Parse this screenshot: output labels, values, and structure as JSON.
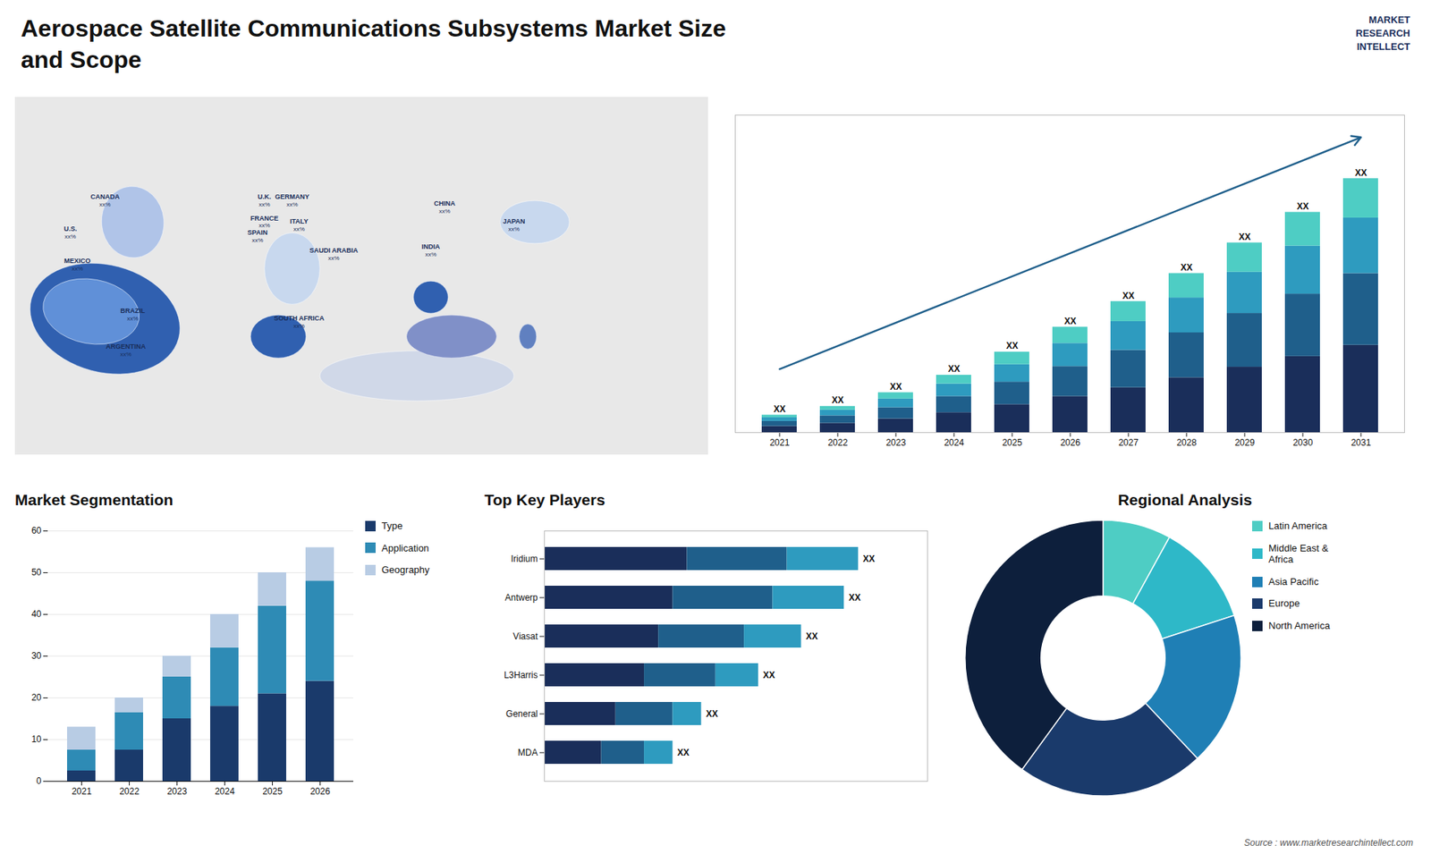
{
  "title": "Aerospace Satellite Communications Subsystems Market Size\nand Scope",
  "annotations": [
    "MARKET\nRESEARCH\nINTELLECT",
    "Source : www.marketresearchintellect.com"
  ],
  "chart_data": [
    {
      "type": "map",
      "categories": [
        "CANADA",
        "U.S.",
        "MEXICO",
        "BRAZIL",
        "ARGENTINA",
        "U.K.",
        "FRANCE",
        "SPAIN",
        "GERMANY",
        "ITALY",
        "SAUDI ARABIA",
        "SOUTH AFRICA",
        "CHINA",
        "INDIA",
        "JAPAN"
      ],
      "value_labels": [
        "xx%",
        "xx%",
        "xx%",
        "xx%",
        "xx%",
        "xx%",
        "xx%",
        "xx%",
        "xx%",
        "xx%",
        "xx%",
        "xx%",
        "xx%",
        "xx%",
        "xx%"
      ]
    },
    {
      "type": "bar",
      "stacked": true,
      "categories": [
        "2021",
        "2022",
        "2023",
        "2024",
        "2025",
        "2026",
        "2027",
        "2028",
        "2029",
        "2030",
        "2031"
      ],
      "series": [
        {
          "color": "#1a2e5a",
          "values": [
            1.0,
            1.5,
            2.2,
            3.2,
            4.5,
            5.8,
            7.2,
            8.8,
            10.5,
            12.2,
            14.0
          ]
        },
        {
          "color": "#1f5f8b",
          "values": [
            0.8,
            1.2,
            1.8,
            2.6,
            3.6,
            4.8,
            6.0,
            7.2,
            8.6,
            10.0,
            11.5
          ]
        },
        {
          "color": "#2e9bbf",
          "values": [
            0.6,
            0.9,
            1.4,
            2.0,
            2.8,
            3.7,
            4.6,
            5.6,
            6.6,
            7.7,
            8.9
          ]
        },
        {
          "color": "#4ecdc4",
          "values": [
            0.4,
            0.6,
            1.0,
            1.4,
            2.0,
            2.6,
            3.2,
            3.9,
            4.7,
            5.4,
            6.3
          ]
        }
      ],
      "ylim": [
        0,
        50.875
      ],
      "tick_labels": "x",
      "data_labels": true,
      "value_labels": [
        "XX",
        "XX",
        "XX",
        "XX",
        "XX",
        "XX",
        "XX",
        "XX",
        "XX",
        "XX",
        "XX"
      ]
    },
    {
      "type": "bar",
      "stacked": true,
      "title": "Market Segmentation",
      "categories": [
        "2021",
        "2022",
        "2023",
        "2024",
        "2025",
        "2026"
      ],
      "series": [
        {
          "name": "Type",
          "color": "#1a3a6b",
          "values": [
            2.5,
            7.5,
            15.0,
            18.0,
            21.0,
            24.0
          ]
        },
        {
          "name": "Application",
          "color": "#2e8bb5",
          "values": [
            5.0,
            9.0,
            10.0,
            14.0,
            21.0,
            24.0
          ]
        },
        {
          "name": "Geography",
          "color": "#b8cce4",
          "values": [
            5.5,
            3.5,
            5.0,
            8.0,
            8.0,
            8.0
          ]
        }
      ],
      "ylim": [
        0,
        60
      ],
      "yticks": [
        0,
        10,
        20,
        30,
        40,
        50,
        60
      ],
      "grid": true,
      "legend": "right"
    },
    {
      "type": "bar",
      "stacked": true,
      "orientation": "horizontal",
      "title": "Top Key Players",
      "categories": [
        "Iridium",
        "Antwerp",
        "Viasat",
        "L3Harris",
        "General",
        "MDA"
      ],
      "series": [
        {
          "color": "#1a2e5a",
          "values": [
            5.0,
            4.5,
            4.0,
            3.5,
            2.5,
            2.0
          ]
        },
        {
          "color": "#1f5f8b",
          "values": [
            3.5,
            3.5,
            3.0,
            2.5,
            2.0,
            1.5
          ]
        },
        {
          "color": "#2e9bbf",
          "values": [
            2.5,
            2.5,
            2.0,
            1.5,
            1.0,
            1.0
          ]
        }
      ],
      "xlim": [
        0,
        13.42
      ],
      "tick_labels": "y",
      "data_labels": true,
      "value_labels": [
        "XX",
        "XX",
        "XX",
        "XX",
        "XX",
        "XX"
      ]
    },
    {
      "type": "pie",
      "title": "Regional Analysis",
      "categories": [
        "Latin America",
        "Middle East &\nAfrica",
        "Asia Pacific",
        "Europe",
        "North America"
      ],
      "values": [
        8,
        12,
        18,
        22,
        40
      ],
      "colors": [
        "#4ecdc4",
        "#2eb8c8",
        "#1f7fb5",
        "#1a3a6b",
        "#0d1f3c"
      ],
      "legend": "right"
    }
  ]
}
